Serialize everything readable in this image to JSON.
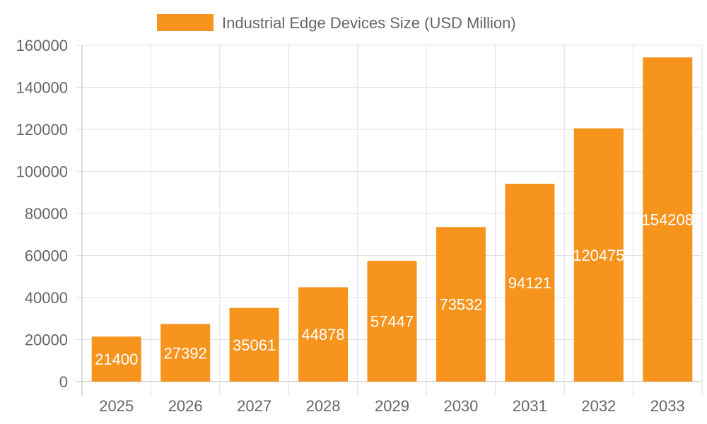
{
  "chart_data": {
    "type": "bar",
    "categories": [
      "2025",
      "2026",
      "2027",
      "2028",
      "2029",
      "2030",
      "2031",
      "2032",
      "2033"
    ],
    "series": [
      {
        "name": "Industrial Edge Devices Size (USD Million)",
        "values": [
          21400,
          27392,
          35061,
          44878,
          57447,
          73532,
          94121,
          120475,
          154208
        ],
        "color": "#F7941E"
      }
    ],
    "ylim": [
      0,
      160000
    ],
    "yticks": [
      0,
      20000,
      40000,
      60000,
      80000,
      100000,
      120000,
      140000,
      160000
    ],
    "grid": true,
    "legend": "top",
    "data_labels": true
  }
}
